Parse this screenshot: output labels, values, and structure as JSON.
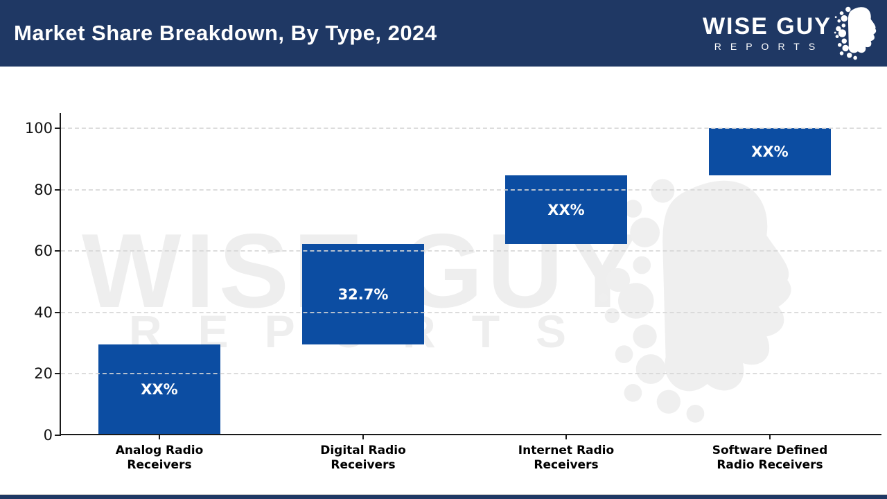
{
  "header": {
    "title": "Market Share Breakdown, By Type, 2024",
    "bg_color": "#1f3864",
    "logo": {
      "line1": "WISE GUY",
      "line2": "REPORTS"
    }
  },
  "watermark": {
    "line1": "WISE GUY",
    "line2": "REPORTS"
  },
  "footer": {
    "bg_color": "#1f3864"
  },
  "chart_data": {
    "type": "bar",
    "variant": "floating-waterfall",
    "title": "Market Share Breakdown, By Type, 2024",
    "xlabel": "",
    "ylabel": "",
    "ylim": [
      0,
      100
    ],
    "yticks": [
      0,
      20,
      40,
      60,
      80,
      100
    ],
    "grid": "horizontal-dashed",
    "legend": "none",
    "bar_color": "#0c4da2",
    "categories": [
      "Analog Radio Receivers",
      "Digital Radio Receivers",
      "Internet Radio Receivers",
      "Software Defined Radio Receivers"
    ],
    "category_lines": [
      [
        "Analog Radio",
        "Receivers"
      ],
      [
        "Digital Radio",
        "Receivers"
      ],
      [
        "Internet Radio",
        "Receivers"
      ],
      [
        "Software Defined",
        "Radio Receivers"
      ]
    ],
    "bars": [
      {
        "label": "XX%",
        "start": 0,
        "end": 29.5
      },
      {
        "label": "32.7%",
        "start": 29.5,
        "end": 62.2
      },
      {
        "label": "XX%",
        "start": 62.2,
        "end": 84.7
      },
      {
        "label": "XX%",
        "start": 84.7,
        "end": 100
      }
    ]
  }
}
